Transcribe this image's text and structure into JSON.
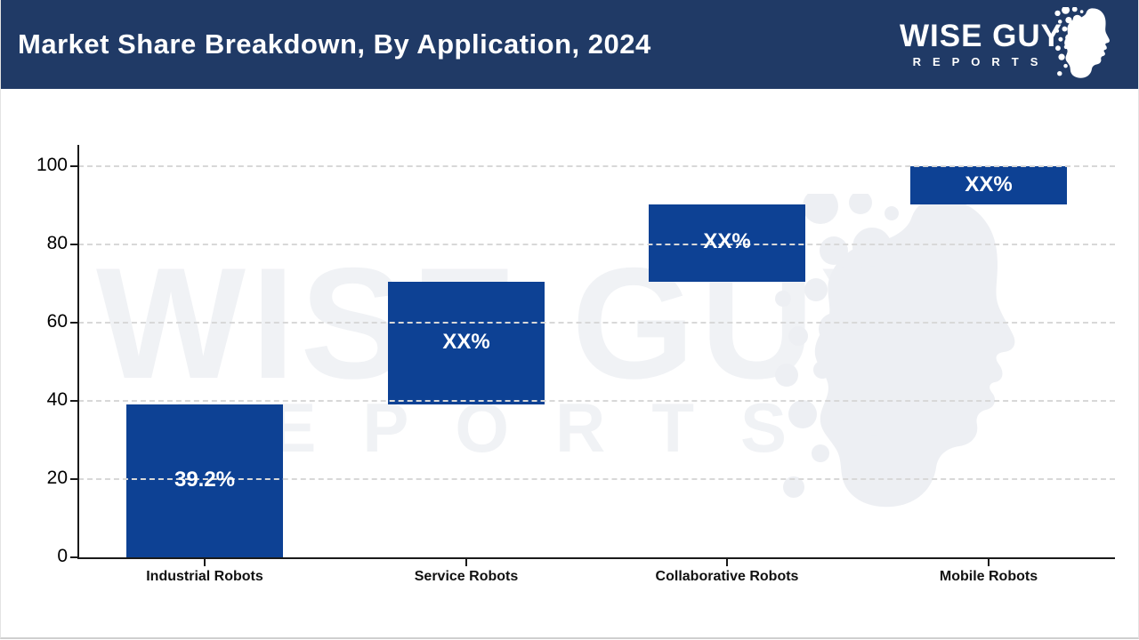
{
  "header": {
    "title": "Market Share Breakdown, By Application, 2024"
  },
  "logo": {
    "line1": "WISE GUY",
    "line2": "REPORTS",
    "icon": "dotted-head-profile-icon"
  },
  "watermark": {
    "line1": "WISE GUY",
    "line2": "REPORTS",
    "icon": "dotted-head-profile-icon"
  },
  "chart_data": {
    "type": "bar",
    "subtype": "waterfall",
    "title": "Market Share Breakdown, By Application, 2024",
    "categories": [
      "Industrial Robots",
      "Service Robots",
      "Collaborative Robots",
      "Mobile Robots"
    ],
    "segments": [
      {
        "category": "Industrial Robots",
        "start": 0,
        "end": 39.2,
        "value": 39.2,
        "label": "39.2%"
      },
      {
        "category": "Service Robots",
        "start": 39.2,
        "end": 70.5,
        "value": 31.3,
        "label": "XX%"
      },
      {
        "category": "Collaborative Robots",
        "start": 70.5,
        "end": 90.2,
        "value": 19.7,
        "label": "XX%"
      },
      {
        "category": "Mobile Robots",
        "start": 90.2,
        "end": 100,
        "value": 9.8,
        "label": "XX%"
      }
    ],
    "xlabel": "",
    "ylabel": "",
    "ylim": [
      0,
      100
    ],
    "yticks": [
      0,
      20,
      40,
      60,
      80,
      100
    ],
    "grid": "horizontal-dashed",
    "legend": "none",
    "bar_color": "#0d4194",
    "value_label_color": "#ffffff",
    "header_color": "#203a66",
    "gridline_color": "#d8d8d8"
  }
}
